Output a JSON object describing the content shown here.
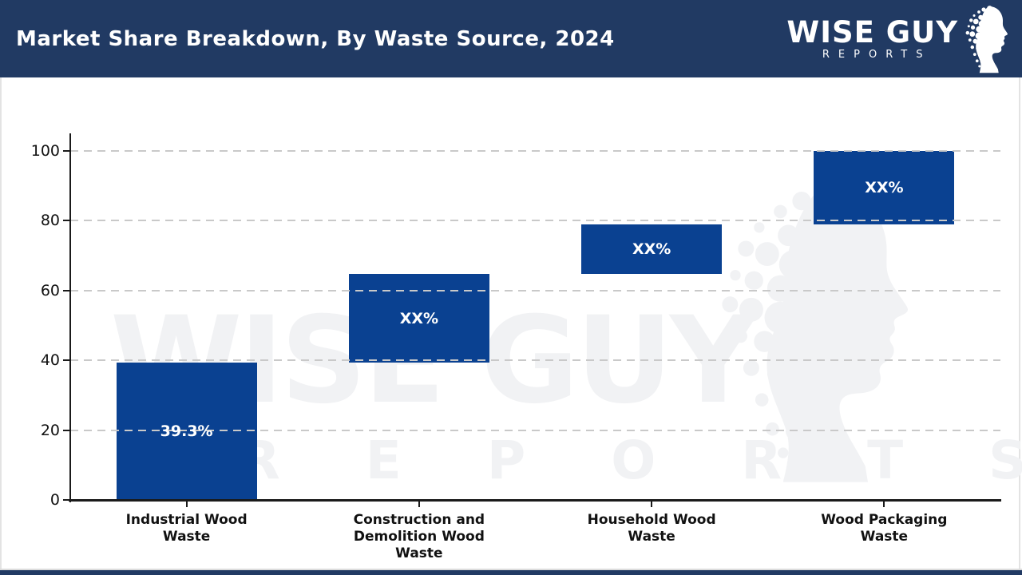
{
  "header": {
    "title": "Market Share Breakdown, By Waste Source, 2024",
    "logo": {
      "line1": "WISE GUY",
      "line2": "REPORTS"
    }
  },
  "watermark": {
    "line1": "WISE GUY",
    "line2": "R E P O R T S"
  },
  "chart_data": {
    "type": "bar",
    "subtype": "waterfall",
    "title": "Market Share Breakdown, By Waste Source, 2024",
    "categories": [
      "Industrial Wood Waste",
      "Construction and Demolition Wood Waste",
      "Household Wood Waste",
      "Wood Packaging Waste"
    ],
    "bars": [
      {
        "category": "Industrial Wood Waste",
        "start": 0,
        "end": 39.3,
        "label": "39.3%"
      },
      {
        "category": "Construction and Demolition Wood Waste",
        "start": 39.3,
        "end": 64.7,
        "label": "XX%"
      },
      {
        "category": "Household Wood Waste",
        "start": 64.7,
        "end": 78.9,
        "label": "XX%"
      },
      {
        "category": "Wood Packaging Waste",
        "start": 78.9,
        "end": 100,
        "label": "XX%"
      }
    ],
    "yticks": [
      0,
      20,
      40,
      60,
      80,
      100
    ],
    "ylim": [
      0,
      105
    ],
    "grid": "horizontal-dashed",
    "legend": "none",
    "bar_color": "#0a4191",
    "bar_label_color": "#ffffff"
  },
  "colors": {
    "header_bg": "#213a63",
    "footer_bg": "#213a63",
    "bar": "#0a4191",
    "grid": "#c9c9c9",
    "axis": "#1a1a1a",
    "watermark": "#f1f2f4"
  }
}
